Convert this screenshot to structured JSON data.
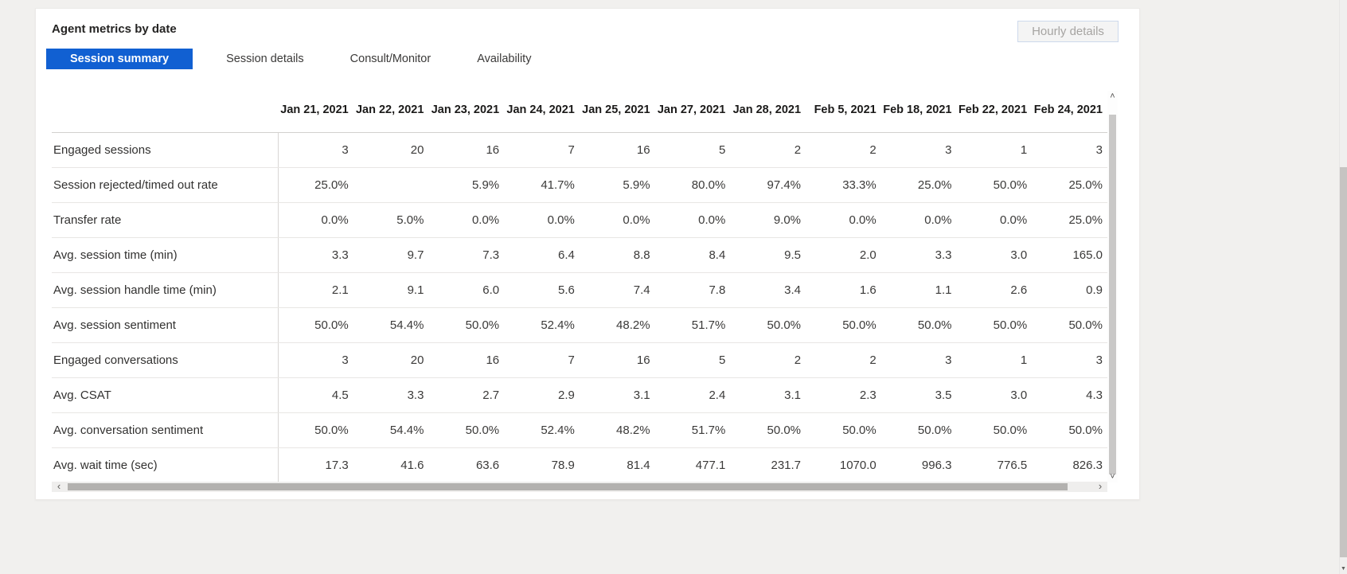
{
  "header": {
    "title": "Agent metrics by date",
    "hourly_details_button": "Hourly details"
  },
  "tabs": {
    "items": [
      {
        "label": "Session summary",
        "active": true
      },
      {
        "label": "Session details",
        "active": false
      },
      {
        "label": "Consult/Monitor",
        "active": false
      },
      {
        "label": "Availability",
        "active": false
      }
    ]
  },
  "table": {
    "columns": [
      "Jan 21, 2021",
      "Jan 22, 2021",
      "Jan 23, 2021",
      "Jan 24, 2021",
      "Jan 25, 2021",
      "Jan 27, 2021",
      "Jan 28, 2021",
      "Feb 5, 2021",
      "Feb 18, 2021",
      "Feb 22, 2021",
      "Feb 24, 2021"
    ],
    "rows": [
      {
        "label": "Engaged sessions",
        "values": [
          "3",
          "20",
          "16",
          "7",
          "16",
          "5",
          "2",
          "2",
          "3",
          "1",
          "3"
        ]
      },
      {
        "label": "Session rejected/timed out rate",
        "values": [
          "25.0%",
          "",
          "5.9%",
          "41.7%",
          "5.9%",
          "80.0%",
          "97.4%",
          "33.3%",
          "25.0%",
          "50.0%",
          "25.0%"
        ]
      },
      {
        "label": "Transfer rate",
        "values": [
          "0.0%",
          "5.0%",
          "0.0%",
          "0.0%",
          "0.0%",
          "0.0%",
          "9.0%",
          "0.0%",
          "0.0%",
          "0.0%",
          "25.0%"
        ]
      },
      {
        "label": "Avg. session time (min)",
        "values": [
          "3.3",
          "9.7",
          "7.3",
          "6.4",
          "8.8",
          "8.4",
          "9.5",
          "2.0",
          "3.3",
          "3.0",
          "165.0"
        ]
      },
      {
        "label": "Avg. session handle time (min)",
        "values": [
          "2.1",
          "9.1",
          "6.0",
          "5.6",
          "7.4",
          "7.8",
          "3.4",
          "1.6",
          "1.1",
          "2.6",
          "0.9"
        ]
      },
      {
        "label": "Avg. session sentiment",
        "values": [
          "50.0%",
          "54.4%",
          "50.0%",
          "52.4%",
          "48.2%",
          "51.7%",
          "50.0%",
          "50.0%",
          "50.0%",
          "50.0%",
          "50.0%"
        ]
      },
      {
        "label": "Engaged conversations",
        "values": [
          "3",
          "20",
          "16",
          "7",
          "16",
          "5",
          "2",
          "2",
          "3",
          "1",
          "3"
        ]
      },
      {
        "label": "Avg. CSAT",
        "values": [
          "4.5",
          "3.3",
          "2.7",
          "2.9",
          "3.1",
          "2.4",
          "3.1",
          "2.3",
          "3.5",
          "3.0",
          "4.3"
        ]
      },
      {
        "label": "Avg. conversation sentiment",
        "values": [
          "50.0%",
          "54.4%",
          "50.0%",
          "52.4%",
          "48.2%",
          "51.7%",
          "50.0%",
          "50.0%",
          "50.0%",
          "50.0%",
          "50.0%"
        ]
      },
      {
        "label": "Avg. wait time (sec)",
        "values": [
          "17.3",
          "41.6",
          "63.6",
          "78.9",
          "81.4",
          "477.1",
          "231.7",
          "1070.0",
          "996.3",
          "776.5",
          "826.3"
        ]
      }
    ]
  },
  "scrollbars": {
    "table_vertical": {
      "up_arrow": "˄",
      "down_arrow": "˅"
    },
    "table_horizontal": {
      "left_arrow": "‹",
      "right_arrow": "›"
    },
    "page_vertical": {
      "down_arrow": "▼"
    }
  },
  "colors": {
    "active_tab_background": "#1160d2",
    "active_tab_text": "#ffffff",
    "disabled_button_text": "#a6a4a2",
    "disabled_button_border": "#cdd9ec",
    "row_border": "#e8e6e4",
    "header_border": "#d2d0ce"
  }
}
